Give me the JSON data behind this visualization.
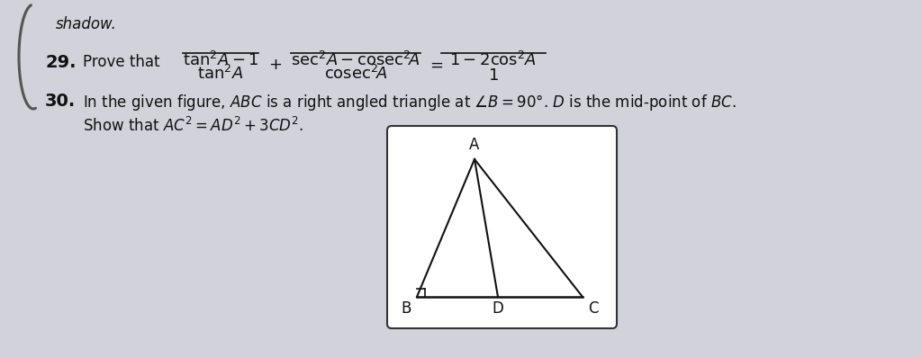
{
  "background_color": "#d2d2da",
  "shadow_text": "shadow.",
  "text_color": "#111111",
  "fig_box_color": "#ffffff",
  "fig_box_edge": "#333333",
  "triangle_color": "#111111",
  "label_color": "#111111",
  "q29_num": "29.",
  "q30_num": "30.",
  "prove_text": "Prove that",
  "q30_line1": "In the given figure, $ABC$ is a right angled triangle at $\\angle B = 90°$. $D$ is the mid-point of $BC$.",
  "q30_line2": "Show that $AC^2 = AD^2 + 3CD^2$.",
  "frac1_num": "$\\tan^2\\!A$",
  "frac1_den": "$\\tan^2\\!A - 1$",
  "frac2_num": "$\\mathrm{cosec}^2\\!A$",
  "frac2_den": "$\\sec^2\\!A - \\mathrm{cosec}^2\\!A$",
  "frac3_num": "$1$",
  "frac3_den": "$1 - 2\\cos^2\\!A$",
  "plus_sign": "$+$",
  "equals_sign": "$=$",
  "font_size_text": 12,
  "font_size_formula": 13,
  "font_size_label": 14
}
